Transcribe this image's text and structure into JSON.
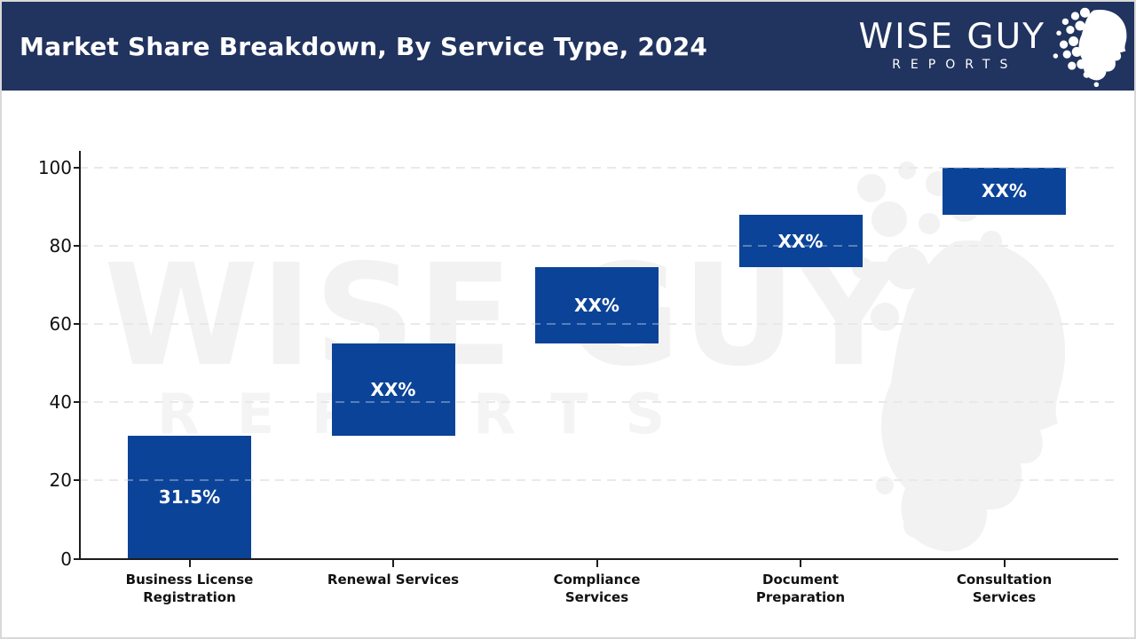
{
  "header": {
    "title": "Market Share Breakdown, By Service Type, 2024",
    "logo": {
      "line1": "WISE GUY",
      "line2": "REPORTS"
    }
  },
  "watermark": {
    "line1": "WISE GUY",
    "line2": "REPORTS"
  },
  "colors": {
    "header_bg": "#21335f",
    "bar": "#0b4398",
    "bar_label": "#ffffff",
    "grid": "#dfdfdf",
    "axis": "#1c1c1c",
    "watermark": "#f2f2f2"
  },
  "chart_data": {
    "type": "bar",
    "subtype": "waterfall",
    "title": "Market Share Breakdown, By Service Type, 2024",
    "categories": [
      "Business License Registration",
      "Renewal Services",
      "Compliance Services",
      "Document Preparation",
      "Consultation Services"
    ],
    "category_lines": [
      [
        "Business License",
        "Registration"
      ],
      [
        "Renewal Services"
      ],
      [
        "Compliance",
        "Services"
      ],
      [
        "Document",
        "Preparation"
      ],
      [
        "Consultation",
        "Services"
      ]
    ],
    "segments": [
      {
        "start": 0,
        "end": 31.5
      },
      {
        "start": 31.5,
        "end": 55
      },
      {
        "start": 55,
        "end": 74.5
      },
      {
        "start": 74.5,
        "end": 88
      },
      {
        "start": 88,
        "end": 100
      }
    ],
    "values": [
      31.5,
      23.5,
      19.5,
      13.5,
      12
    ],
    "bar_labels": [
      "31.5%",
      "XX%",
      "XX%",
      "XX%",
      "XX%"
    ],
    "ylim": [
      0,
      100
    ],
    "yticks": [
      0,
      20,
      40,
      60,
      80,
      100
    ],
    "grid": "dashed-horizontal",
    "legend": "none",
    "xlabel": "",
    "ylabel": ""
  }
}
